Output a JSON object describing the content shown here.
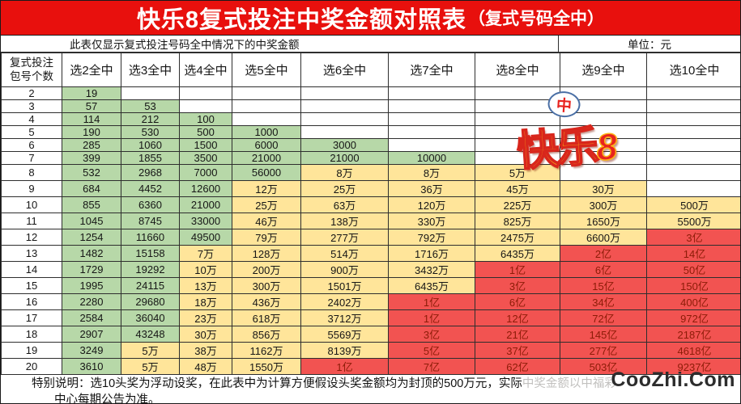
{
  "title": {
    "main": "快乐8复式投注中奖金额对照表",
    "suffix": "（复式号码全中）"
  },
  "subtitle": {
    "note": "此表仅显示复式投注号码全中情况下的中奖金额",
    "unit": "单位：元"
  },
  "table": {
    "corner_header": [
      "复式投注",
      "包号个数"
    ],
    "columns": [
      "选2全中",
      "选3全中",
      "选4全中",
      "选5全中",
      "选6全中",
      "选7全中",
      "选8全中",
      "选9全中",
      "选10全中"
    ],
    "rows": [
      {
        "count": "2",
        "cells": [
          [
            "19",
            "green"
          ],
          [
            "",
            ""
          ],
          [
            "",
            ""
          ],
          [
            "",
            ""
          ],
          [
            "",
            ""
          ],
          [
            "",
            ""
          ],
          [
            "",
            ""
          ],
          [
            "",
            ""
          ],
          [
            "",
            ""
          ]
        ]
      },
      {
        "count": "3",
        "cells": [
          [
            "57",
            "green"
          ],
          [
            "53",
            "green"
          ],
          [
            "",
            ""
          ],
          [
            "",
            ""
          ],
          [
            "",
            ""
          ],
          [
            "",
            ""
          ],
          [
            "",
            ""
          ],
          [
            "",
            ""
          ],
          [
            "",
            ""
          ]
        ]
      },
      {
        "count": "4",
        "cells": [
          [
            "114",
            "green"
          ],
          [
            "212",
            "green"
          ],
          [
            "100",
            "green"
          ],
          [
            "",
            ""
          ],
          [
            "",
            ""
          ],
          [
            "",
            ""
          ],
          [
            "",
            ""
          ],
          [
            "",
            ""
          ],
          [
            "",
            ""
          ]
        ]
      },
      {
        "count": "5",
        "cells": [
          [
            "190",
            "green"
          ],
          [
            "530",
            "green"
          ],
          [
            "500",
            "green"
          ],
          [
            "1000",
            "green"
          ],
          [
            "",
            ""
          ],
          [
            "",
            ""
          ],
          [
            "",
            ""
          ],
          [
            "",
            ""
          ],
          [
            "",
            ""
          ]
        ]
      },
      {
        "count": "6",
        "cells": [
          [
            "285",
            "green"
          ],
          [
            "1060",
            "green"
          ],
          [
            "1500",
            "green"
          ],
          [
            "6000",
            "green"
          ],
          [
            "3000",
            "green"
          ],
          [
            "",
            ""
          ],
          [
            "",
            ""
          ],
          [
            "",
            ""
          ],
          [
            "",
            ""
          ]
        ]
      },
      {
        "count": "7",
        "cells": [
          [
            "399",
            "green"
          ],
          [
            "1855",
            "green"
          ],
          [
            "3500",
            "green"
          ],
          [
            "21000",
            "green"
          ],
          [
            "21000",
            "green"
          ],
          [
            "10000",
            "green"
          ],
          [
            "",
            ""
          ],
          [
            "",
            ""
          ],
          [
            "",
            ""
          ]
        ]
      },
      {
        "count": "8",
        "cells": [
          [
            "532",
            "green"
          ],
          [
            "2968",
            "green"
          ],
          [
            "7000",
            "green"
          ],
          [
            "56000",
            "green"
          ],
          [
            "8万",
            "yellow"
          ],
          [
            "8万",
            "yellow"
          ],
          [
            "5万",
            "yellow"
          ],
          [
            "",
            ""
          ],
          [
            "",
            ""
          ]
        ]
      },
      {
        "count": "9",
        "cells": [
          [
            "684",
            "green"
          ],
          [
            "4452",
            "green"
          ],
          [
            "12600",
            "green"
          ],
          [
            "12万",
            "yellow"
          ],
          [
            "25万",
            "yellow"
          ],
          [
            "36万",
            "yellow"
          ],
          [
            "45万",
            "yellow"
          ],
          [
            "30万",
            "yellow"
          ],
          [
            "",
            ""
          ]
        ]
      },
      {
        "count": "10",
        "cells": [
          [
            "855",
            "green"
          ],
          [
            "6360",
            "green"
          ],
          [
            "21000",
            "green"
          ],
          [
            "25万",
            "yellow"
          ],
          [
            "63万",
            "yellow"
          ],
          [
            "120万",
            "yellow"
          ],
          [
            "225万",
            "yellow"
          ],
          [
            "300万",
            "yellow"
          ],
          [
            "500万",
            "yellow"
          ]
        ]
      },
      {
        "count": "11",
        "cells": [
          [
            "1045",
            "green"
          ],
          [
            "8745",
            "green"
          ],
          [
            "33000",
            "green"
          ],
          [
            "46万",
            "yellow"
          ],
          [
            "138万",
            "yellow"
          ],
          [
            "330万",
            "yellow"
          ],
          [
            "825万",
            "yellow"
          ],
          [
            "1650万",
            "yellow"
          ],
          [
            "5500万",
            "yellow"
          ]
        ]
      },
      {
        "count": "12",
        "cells": [
          [
            "1254",
            "green"
          ],
          [
            "11660",
            "green"
          ],
          [
            "49500",
            "green"
          ],
          [
            "79万",
            "yellow"
          ],
          [
            "277万",
            "yellow"
          ],
          [
            "792万",
            "yellow"
          ],
          [
            "2475万",
            "yellow"
          ],
          [
            "6600万",
            "yellow"
          ],
          [
            "3亿",
            "red"
          ]
        ]
      },
      {
        "count": "13",
        "cells": [
          [
            "1482",
            "green"
          ],
          [
            "15158",
            "green"
          ],
          [
            "7万",
            "yellow"
          ],
          [
            "128万",
            "yellow"
          ],
          [
            "514万",
            "yellow"
          ],
          [
            "1716万",
            "yellow"
          ],
          [
            "6435万",
            "yellow"
          ],
          [
            "2亿",
            "red"
          ],
          [
            "14亿",
            "red"
          ]
        ]
      },
      {
        "count": "14",
        "cells": [
          [
            "1729",
            "green"
          ],
          [
            "19292",
            "green"
          ],
          [
            "10万",
            "yellow"
          ],
          [
            "200万",
            "yellow"
          ],
          [
            "900万",
            "yellow"
          ],
          [
            "3432万",
            "yellow"
          ],
          [
            "1亿",
            "red"
          ],
          [
            "6亿",
            "red"
          ],
          [
            "50亿",
            "red"
          ]
        ]
      },
      {
        "count": "15",
        "cells": [
          [
            "1995",
            "green"
          ],
          [
            "24115",
            "green"
          ],
          [
            "13万",
            "yellow"
          ],
          [
            "300万",
            "yellow"
          ],
          [
            "1501万",
            "yellow"
          ],
          [
            "6435万",
            "yellow"
          ],
          [
            "3亿",
            "red"
          ],
          [
            "15亿",
            "red"
          ],
          [
            "150亿",
            "red"
          ]
        ]
      },
      {
        "count": "16",
        "cells": [
          [
            "2280",
            "green"
          ],
          [
            "29680",
            "green"
          ],
          [
            "18万",
            "yellow"
          ],
          [
            "436万",
            "yellow"
          ],
          [
            "2402万",
            "yellow"
          ],
          [
            "1亿",
            "red"
          ],
          [
            "6亿",
            "red"
          ],
          [
            "34亿",
            "red"
          ],
          [
            "400亿",
            "red"
          ]
        ]
      },
      {
        "count": "17",
        "cells": [
          [
            "2584",
            "green"
          ],
          [
            "36040",
            "green"
          ],
          [
            "23万",
            "yellow"
          ],
          [
            "618万",
            "yellow"
          ],
          [
            "3712万",
            "yellow"
          ],
          [
            "1亿",
            "red"
          ],
          [
            "12亿",
            "red"
          ],
          [
            "72亿",
            "red"
          ],
          [
            "972亿",
            "red"
          ]
        ]
      },
      {
        "count": "18",
        "cells": [
          [
            "2907",
            "green"
          ],
          [
            "43248",
            "green"
          ],
          [
            "30万",
            "yellow"
          ],
          [
            "856万",
            "yellow"
          ],
          [
            "5569万",
            "yellow"
          ],
          [
            "3亿",
            "red"
          ],
          [
            "21亿",
            "red"
          ],
          [
            "145亿",
            "red"
          ],
          [
            "2187亿",
            "red"
          ]
        ]
      },
      {
        "count": "19",
        "cells": [
          [
            "3249",
            "green"
          ],
          [
            "5万",
            "yellow"
          ],
          [
            "38万",
            "yellow"
          ],
          [
            "1162万",
            "yellow"
          ],
          [
            "8139万",
            "yellow"
          ],
          [
            "5亿",
            "red"
          ],
          [
            "37亿",
            "red"
          ],
          [
            "277亿",
            "red"
          ],
          [
            "4618亿",
            "red"
          ]
        ]
      },
      {
        "count": "20",
        "cells": [
          [
            "3610",
            "green"
          ],
          [
            "5万",
            "yellow"
          ],
          [
            "48万",
            "yellow"
          ],
          [
            "1550万",
            "yellow"
          ],
          [
            "1亿",
            "red"
          ],
          [
            "7亿",
            "red"
          ],
          [
            "62亿",
            "red"
          ],
          [
            "503亿",
            "red"
          ],
          [
            "9237亿",
            "red"
          ]
        ]
      }
    ]
  },
  "footer": {
    "line1": "特别说明：选10头奖为浮动设奖，在此表中为计算方便假设头奖金额均为封顶的500万元，实际",
    "line1_faded": "中奖金额以中福彩",
    "line2": "中心每期公告为准。"
  },
  "watermark": "CooZhi.Com",
  "logo": {
    "zhong": "中",
    "kuaile": "快乐",
    "eight": "8"
  },
  "colors": {
    "title_bg": "#e8100d",
    "green": "#b7d8a8",
    "yellow": "#ffe59a",
    "red": "#f25351",
    "red_text": "#8c1c07"
  }
}
